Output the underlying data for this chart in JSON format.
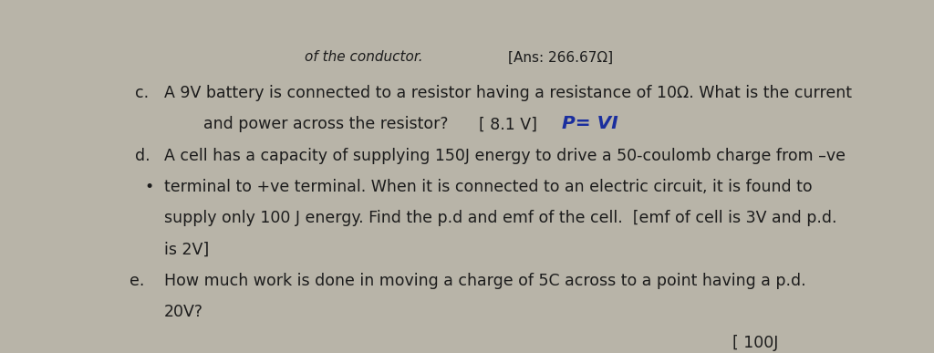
{
  "background_color": "#b8b4a8",
  "top_text_left": "of the conductor.",
  "top_text_right": "[Ans: 266.67Ω]",
  "line_c1": "A 9V battery is connected to a resistor having a resistance of 10Ω. What is the current",
  "line_c2_a": "and power across the resistor?",
  "line_c2_b": "[ 8.1 V]",
  "line_c2_hw": "P= VI",
  "line_d1": "A cell has a capacity of supplying 150J energy to drive a 50-coulomb charge from –ve",
  "line_d2": "terminal to +ve terminal. When it is connected to an electric circuit, it is found to",
  "line_d3": "supply only 100 J energy. Find the p.d and emf of the cell.  [emf of cell is 3V and p.d.",
  "line_d4": "is 2V]",
  "line_e1": "How much work is done in moving a charge of 5C across to a point having a p.d.",
  "line_e2": "20V?",
  "line_e3": "[ 100J",
  "label_c": "c.",
  "label_d": "d.",
  "label_e": "e.",
  "bullet": "•",
  "font_size": 12.5,
  "text_color": "#1c1c1c",
  "hw_color": "#1a2e9e"
}
